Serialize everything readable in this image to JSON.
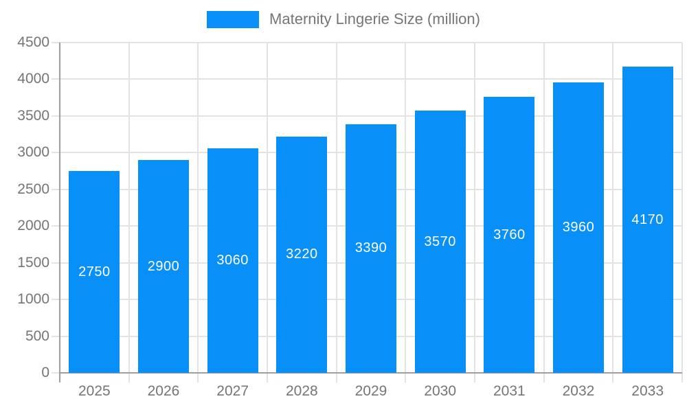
{
  "legend": {
    "label": "Maternity Lingerie Size (million)"
  },
  "chart_data": {
    "type": "bar",
    "title": "Maternity Lingerie Size (million)",
    "categories": [
      "2025",
      "2026",
      "2027",
      "2028",
      "2029",
      "2030",
      "2031",
      "2032",
      "2033"
    ],
    "values": [
      2750,
      2900,
      3060,
      3220,
      3390,
      3570,
      3760,
      3960,
      4170
    ],
    "series": [
      {
        "name": "Maternity Lingerie Size (million)",
        "values": [
          2750,
          2900,
          3060,
          3220,
          3390,
          3570,
          3760,
          3960,
          4170
        ]
      }
    ],
    "xlabel": "",
    "ylabel": "",
    "ylim": [
      0,
      4500
    ],
    "ytick_step": 500,
    "yticks": [
      0,
      500,
      1000,
      1500,
      2000,
      2500,
      3000,
      3500,
      4000,
      4500
    ],
    "grid": true,
    "legend_position": "top-center",
    "bar_labels_inside": true,
    "colors": {
      "bar": "#0990F8",
      "bar_label": "#FFFFFF",
      "grid": "#E3E3E3",
      "axis": "#9E9E9E",
      "text": "#757575"
    }
  }
}
